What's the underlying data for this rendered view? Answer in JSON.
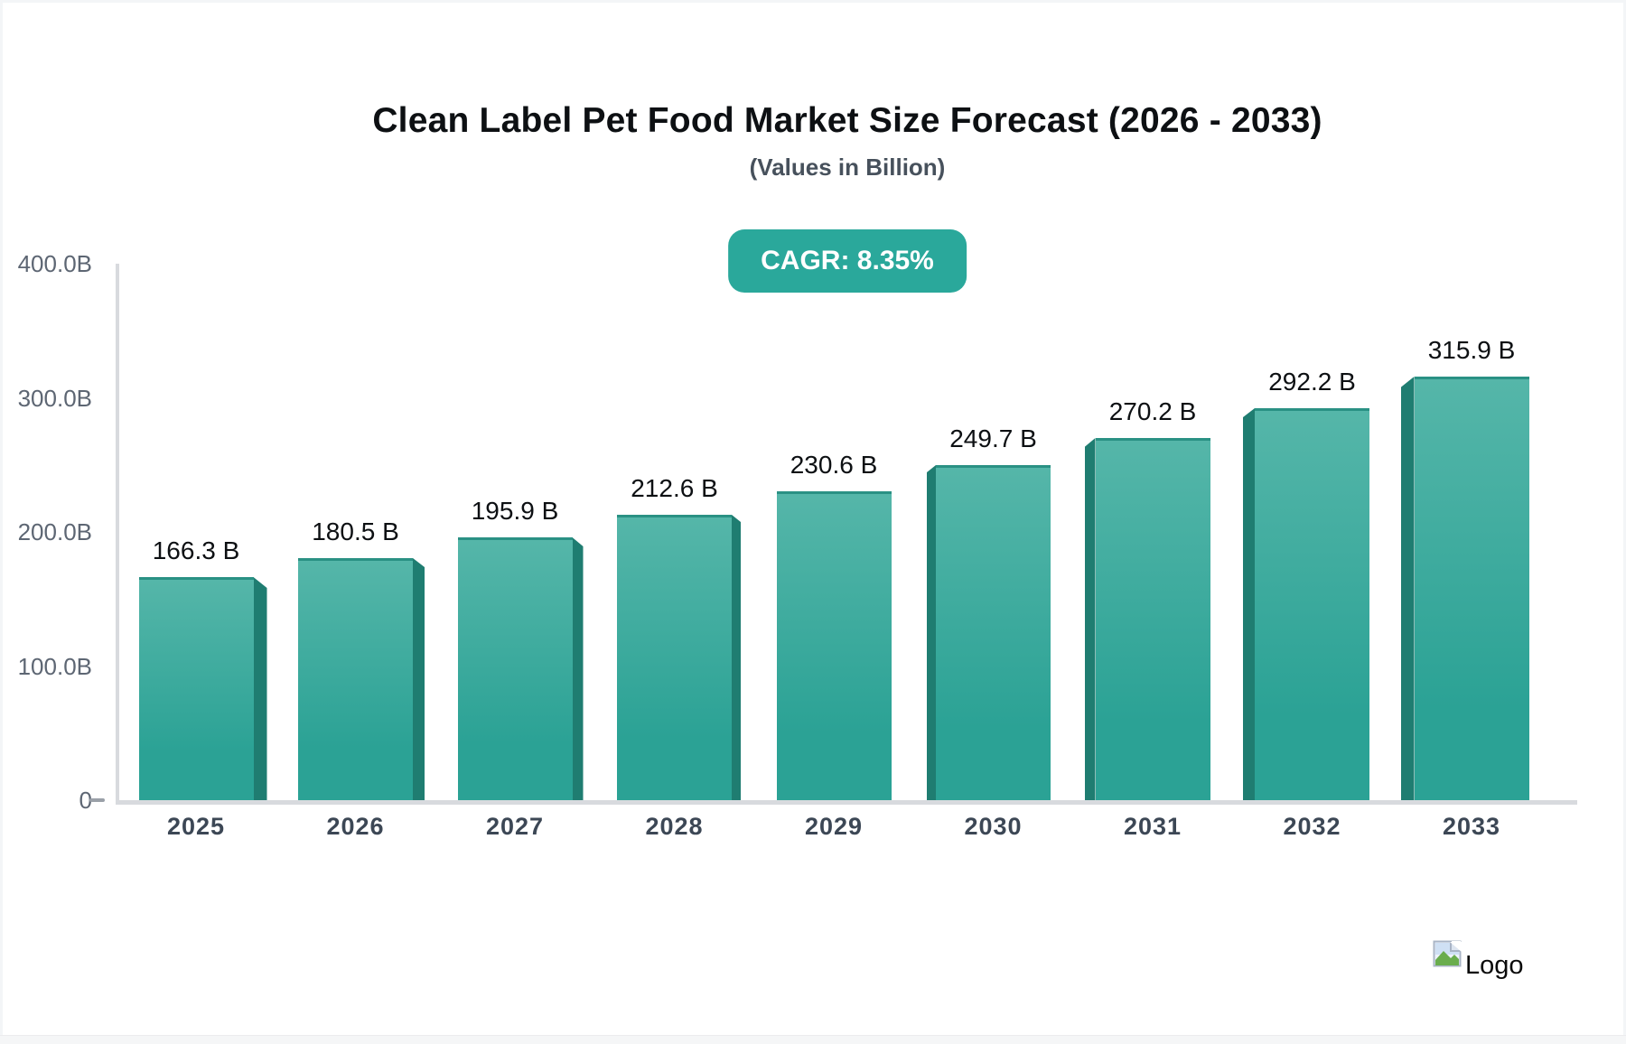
{
  "page": {
    "background": "#ffffff",
    "edge_color": "#f3f5f7"
  },
  "header": {
    "title": "Clean Label Pet Food Market Size Forecast (2026 - 2033)",
    "subtitle": "(Values in Billion)"
  },
  "badge": {
    "label": "CAGR: 8.35%",
    "background": "#2aa89b",
    "text_color": "#ffffff"
  },
  "chart_data": {
    "type": "bar",
    "title": "Clean Label Pet Food Market Size Forecast (2026 - 2033)",
    "subtitle": "(Values in Billion)",
    "annotation": "CAGR: 8.35%",
    "categories": [
      "2025",
      "2026",
      "2027",
      "2028",
      "2029",
      "2030",
      "2031",
      "2032",
      "2033"
    ],
    "values": [
      166.3,
      180.5,
      195.9,
      212.6,
      230.6,
      249.7,
      270.2,
      292.2,
      315.9
    ],
    "value_labels": [
      "166.3 B",
      "180.5 B",
      "195.9 B",
      "212.6 B",
      "230.6 B",
      "249.7 B",
      "270.2 B",
      "292.2 B",
      "315.9 B"
    ],
    "unit": "B",
    "ylim": [
      0,
      400
    ],
    "ytick_labels": [
      "400.0B",
      "300.0B",
      "200.0B",
      "100.0B",
      "0"
    ],
    "ytick_values": [
      400,
      300,
      200,
      100,
      0
    ],
    "grid": false,
    "legend": false,
    "style": "3d-column-center-perspective",
    "colors": {
      "bar_face_top": "#55b6a9",
      "bar_face_bottom": "#2ba295",
      "bar_top_edge": "#2a9184",
      "bar_side": "#1f7d71",
      "axis_line": "#d8dade",
      "tick_dash": "#9aa0a8",
      "ytick_text": "#5d6673",
      "xtick_text": "#3c4755",
      "value_text": "#0d1013",
      "accent": "#2aa89b"
    }
  },
  "footer": {
    "logo_text": "Logo"
  }
}
